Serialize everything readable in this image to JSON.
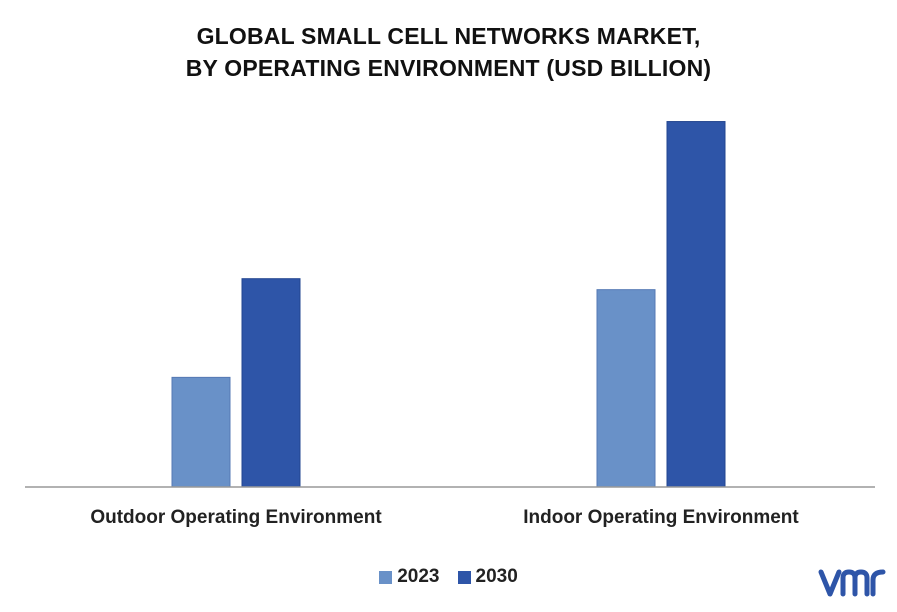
{
  "title_line1": "GLOBAL SMALL CELL NETWORKS MARKET,",
  "title_line2": "BY OPERATING ENVIRONMENT (USD BILLION)",
  "colors": {
    "2023": "#6991c8",
    "2030": "#2e55a8",
    "axis": "#999999"
  },
  "logo_icon": "vmr-logo",
  "chart_data": {
    "type": "bar",
    "title": "GLOBAL SMALL CELL NETWORKS MARKET, BY OPERATING ENVIRONMENT (USD BILLION)",
    "categories": [
      "Outdoor Operating Environment",
      "Indoor Operating Environment"
    ],
    "series": [
      {
        "name": "2023",
        "values": [
          0.3,
          0.54
        ]
      },
      {
        "name": "2030",
        "values": [
          0.57,
          1.0
        ]
      }
    ],
    "xlabel": "",
    "ylabel": "",
    "ylim": [
      0,
      1.1
    ],
    "grid": false,
    "legend": "bottom"
  }
}
